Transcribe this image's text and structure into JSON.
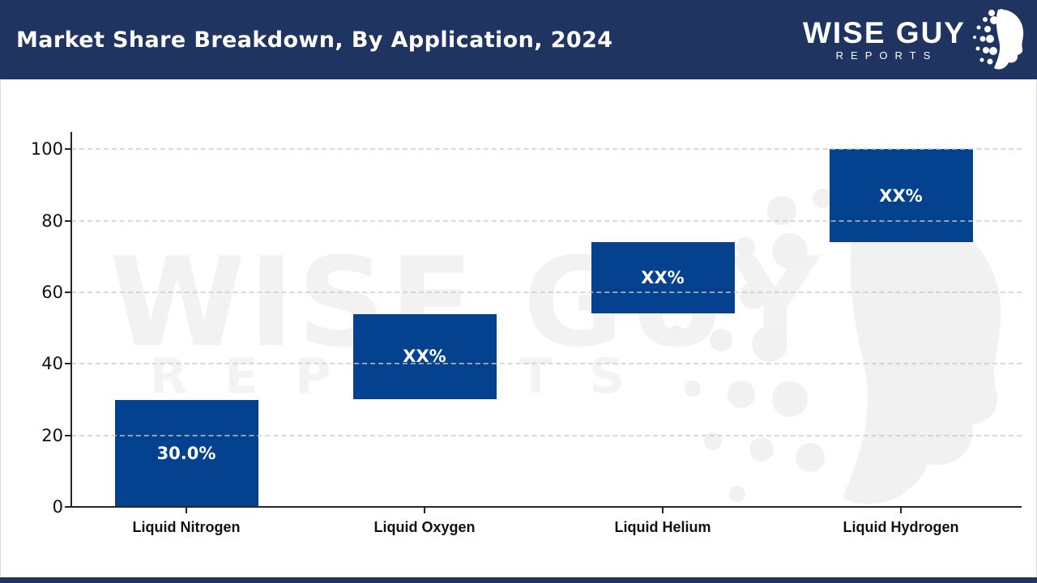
{
  "header": {
    "title": "Market Share Breakdown, By Application, 2024",
    "logo": {
      "wordmark": "WISE GUY",
      "subtext": "REPORTS"
    }
  },
  "watermark": {
    "line1": "WISE GUY",
    "line2": "REPORTS"
  },
  "colors": {
    "header_bg": "#1f3460",
    "bar": "#04418e",
    "bar_label_text": "#ffffff",
    "gridline": "#d9d9d9",
    "axis": "#262626",
    "watermark": "#f2f2f2"
  },
  "chart_data": {
    "type": "bar",
    "subtype": "waterfall",
    "title": "Market Share Breakdown, By Application, 2024",
    "categories": [
      "Liquid Nitrogen",
      "Liquid Oxygen",
      "Liquid Helium",
      "Liquid Hydrogen"
    ],
    "bars": [
      {
        "category": "Liquid Nitrogen",
        "start": 0,
        "end": 30,
        "label": "30.0%"
      },
      {
        "category": "Liquid Oxygen",
        "start": 30,
        "end": 54,
        "label": "XX%"
      },
      {
        "category": "Liquid Helium",
        "start": 54,
        "end": 74,
        "label": "XX%"
      },
      {
        "category": "Liquid Hydrogen",
        "start": 74,
        "end": 100,
        "label": "XX%"
      }
    ],
    "values_implied": [
      30,
      24,
      20,
      26
    ],
    "xlabel": "",
    "ylabel": "",
    "ylim": [
      0,
      105
    ],
    "yticks": [
      0,
      20,
      40,
      60,
      80,
      100
    ],
    "grid": "horizontal-dashed",
    "legend": false
  }
}
